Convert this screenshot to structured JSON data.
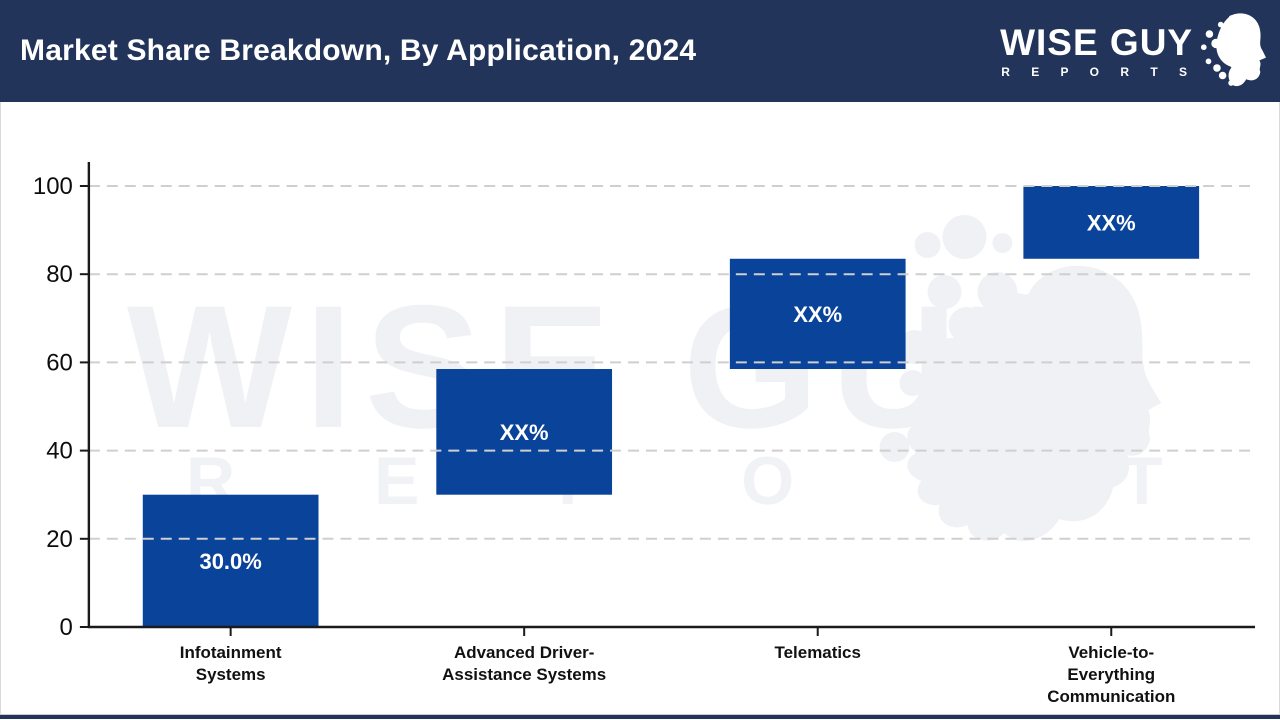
{
  "header": {
    "title": "Market Share Breakdown, By Application, 2024",
    "logo": {
      "name": "WISE GUY",
      "tagline": "R E P O R T S",
      "head_icon": "dotted-face-profile-icon"
    }
  },
  "watermark": {
    "line1": "WISE GUY",
    "line2": "R E P O R T S",
    "head_icon": "dotted-face-profile-watermark"
  },
  "chart_data": {
    "type": "bar",
    "variant": "waterfall",
    "title": "Market Share Breakdown, By Application, 2024",
    "categories": [
      {
        "name": "Infotainment Systems",
        "lines": [
          "Infotainment",
          "Systems"
        ]
      },
      {
        "name": "Advanced Driver-Assistance Systems",
        "lines": [
          "Advanced Driver-",
          "Assistance Systems"
        ]
      },
      {
        "name": "Telematics",
        "lines": [
          "Telematics"
        ]
      },
      {
        "name": "Vehicle-to-Everything Communication",
        "lines": [
          "Vehicle-to-",
          "Everything",
          "Communication"
        ]
      }
    ],
    "segments": [
      {
        "category": "Infotainment Systems",
        "start": 0,
        "end": 30,
        "value": 30.0,
        "label": "30.0%"
      },
      {
        "category": "Advanced Driver-Assistance Systems",
        "start": 30,
        "end": 58.5,
        "value": 28.5,
        "label": "XX%"
      },
      {
        "category": "Telematics",
        "start": 58.5,
        "end": 83.5,
        "value": 25.0,
        "label": "XX%"
      },
      {
        "category": "Vehicle-to-Everything Communication",
        "start": 83.5,
        "end": 100,
        "value": 16.5,
        "label": "XX%"
      }
    ],
    "xlabel": "",
    "ylabel": "",
    "yticks": [
      0,
      20,
      40,
      60,
      80,
      100
    ],
    "ylim": [
      0,
      107
    ],
    "grid": {
      "horizontal": true,
      "style": "dashed",
      "above_bars": true
    },
    "legend": "none"
  },
  "colors": {
    "header_bg": "#223459",
    "footer_bg": "#223459",
    "bar": "#09439A",
    "bar_label": "#ffffff",
    "axis": "#1a1a1a",
    "grid": "#cfcfcf",
    "watermark": "#f0f1f4",
    "title_text": "#ffffff"
  }
}
